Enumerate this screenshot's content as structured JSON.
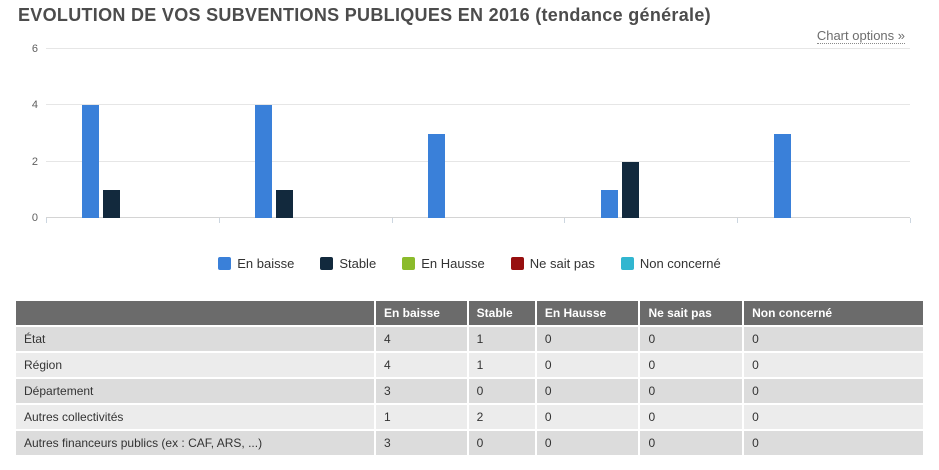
{
  "header": {
    "title": "EVOLUTION DE VOS SUBVENTIONS PUBLIQUES EN 2016 (tendance générale)",
    "chart_options_label": "Chart options »"
  },
  "chart_data": {
    "type": "bar",
    "title": "EVOLUTION DE VOS SUBVENTIONS PUBLIQUES EN 2016 (tendance générale)",
    "categories": [
      "État",
      "Région",
      "Département",
      "Autres collectivités",
      "Autres financeurs publics (ex : CAF, ARS, ...)"
    ],
    "series": [
      {
        "name": "En baisse",
        "color": "#3a80d9",
        "values": [
          4,
          4,
          3,
          1,
          3
        ]
      },
      {
        "name": "Stable",
        "color": "#12293d",
        "values": [
          1,
          1,
          0,
          2,
          0
        ]
      },
      {
        "name": "En Hausse",
        "color": "#8bbb2b",
        "values": [
          0,
          0,
          0,
          0,
          0
        ]
      },
      {
        "name": "Ne sait pas",
        "color": "#970f0f",
        "values": [
          0,
          0,
          0,
          0,
          0
        ]
      },
      {
        "name": "Non concerné",
        "color": "#31b6d0",
        "values": [
          0,
          0,
          0,
          0,
          0
        ]
      }
    ],
    "xlabel": "",
    "ylabel": "",
    "ylim": [
      0,
      6
    ],
    "yticks": [
      0,
      2,
      4,
      6
    ],
    "grid": true,
    "legend_position": "bottom",
    "x_axis_category_labels_visible": false
  },
  "table": {
    "columns": [
      "",
      "En baisse",
      "Stable",
      "En Hausse",
      "Ne sait pas",
      "Non concerné"
    ],
    "rows": [
      {
        "label": "État",
        "values": [
          4,
          1,
          0,
          0,
          0
        ]
      },
      {
        "label": "Région",
        "values": [
          4,
          1,
          0,
          0,
          0
        ]
      },
      {
        "label": "Département",
        "values": [
          3,
          0,
          0,
          0,
          0
        ]
      },
      {
        "label": "Autres collectivités",
        "values": [
          1,
          2,
          0,
          0,
          0
        ]
      },
      {
        "label": "Autres financeurs publics (ex : CAF, ARS, ...)",
        "values": [
          3,
          0,
          0,
          0,
          0
        ]
      }
    ]
  },
  "colors": {
    "title_text": "#4c4c4c",
    "link_text": "#6d6d6d",
    "gridline": "#e6e6e6",
    "axis_line": "#d4d4d4",
    "table_header_bg": "#6b6b6b",
    "table_row_odd_bg": "#dcdcdc",
    "table_row_even_bg": "#ececec"
  }
}
